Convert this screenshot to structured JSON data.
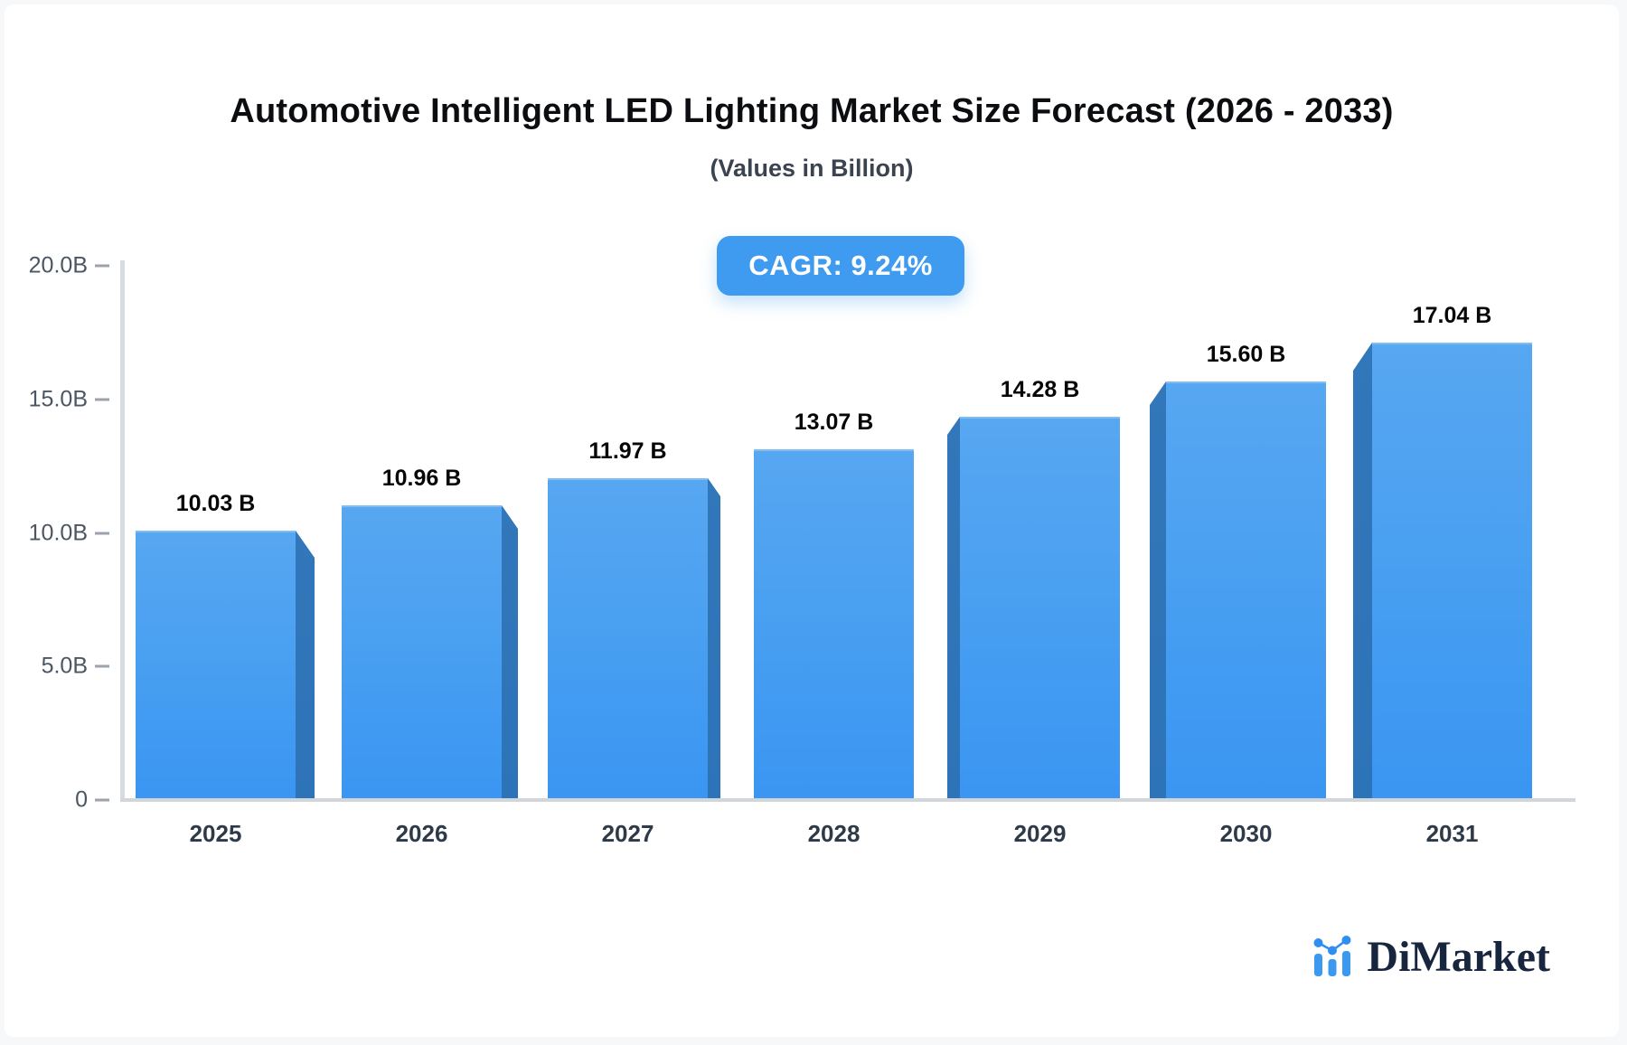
{
  "header": {
    "title": "Automotive Intelligent LED Lighting Market Size Forecast (2026 - 2033)",
    "subtitle": "(Values in Billion)",
    "cagr_label": "CAGR: 9.24%"
  },
  "chart_data": {
    "type": "bar",
    "title": "Automotive Intelligent LED Lighting Market Size Forecast (2026 - 2033)",
    "subtitle": "(Values in Billion)",
    "categories": [
      "2025",
      "2026",
      "2027",
      "2028",
      "2029",
      "2030",
      "2031"
    ],
    "values": [
      10.03,
      10.96,
      11.97,
      13.07,
      14.28,
      15.6,
      17.04
    ],
    "bar_labels": [
      "10.03 B",
      "10.96 B",
      "11.97 B",
      "13.07 B",
      "14.28 B",
      "15.60 B",
      "17.04 B"
    ],
    "cagr": "9.24%",
    "xlabel": "",
    "ylabel": "",
    "y_ticks": [
      {
        "value": 20,
        "label": "20.0B"
      },
      {
        "value": 15,
        "label": "15.0B"
      },
      {
        "value": 10,
        "label": "10.0B"
      },
      {
        "value": 5,
        "label": "5.0B"
      },
      {
        "value": 0,
        "label": "0"
      }
    ],
    "ylim": [
      0,
      20
    ],
    "grid": false,
    "legend": "none",
    "bar_style": "3d-perspective"
  },
  "branding": {
    "logo_text": "DiMarket",
    "logo_icon": "bar-line-chart-icon"
  },
  "colors": {
    "bar_face_top": "#57a7f1",
    "bar_face_bottom": "#3a96f2",
    "bar_side": "#2d73b7",
    "badge_bg": "#3f9bf0",
    "badge_text": "#ffffff",
    "axis_line": "#d6dade",
    "tick_text": "#4c5663",
    "title_text": "#0c0d10",
    "logo_text": "#17253e",
    "logo_icon_blue": "#3b9af0"
  }
}
